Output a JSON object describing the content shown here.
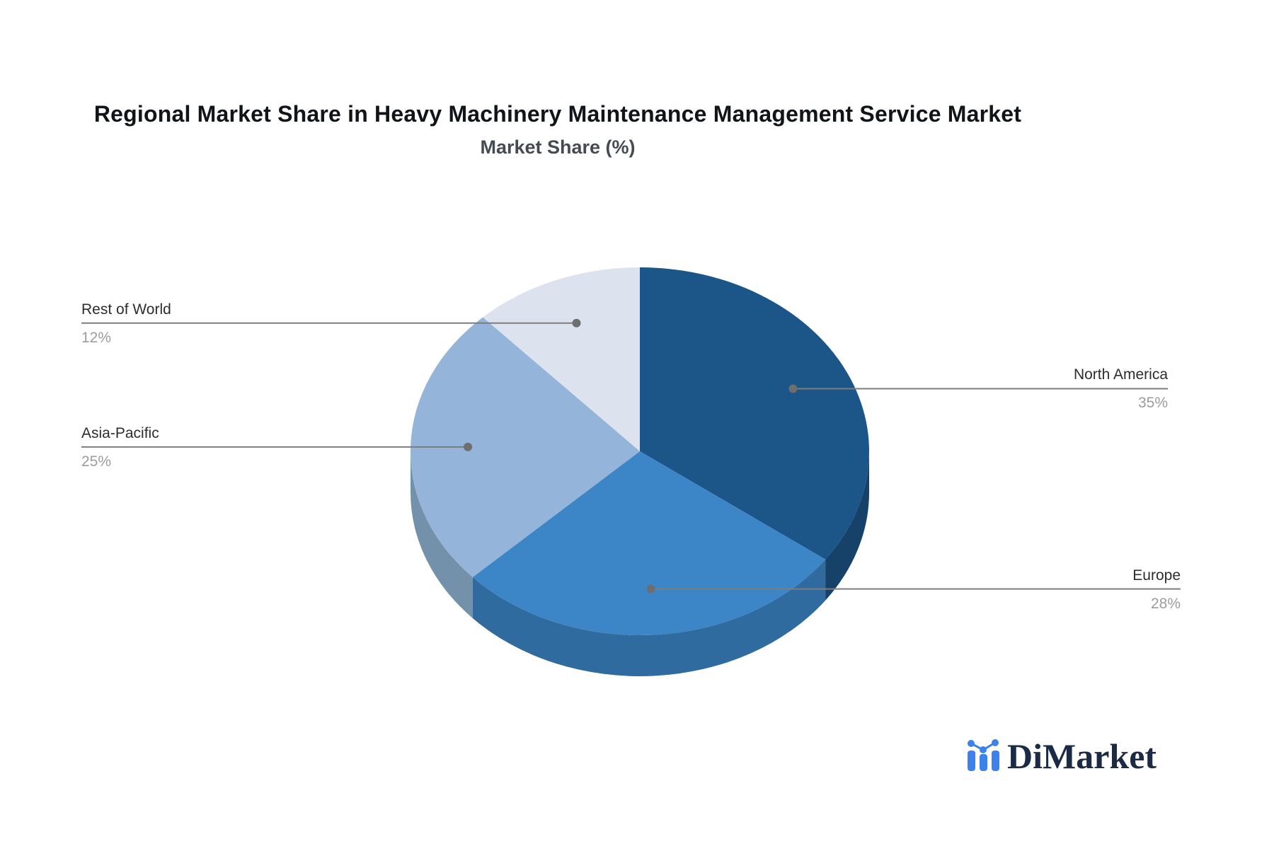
{
  "header": {
    "title": "Regional Market Share in Heavy Machinery Maintenance Management Service Market",
    "subtitle": "Market Share (%)"
  },
  "chart_data": {
    "type": "pie",
    "title": "Regional Market Share in Heavy Machinery Maintenance Management Service Market",
    "subtitle": "Market Share (%)",
    "unit": "%",
    "style": "3d-pie",
    "direction": "clockwise",
    "start_angle": "12 o'clock",
    "categories": [
      "North America",
      "Europe",
      "Asia-Pacific",
      "Rest of World"
    ],
    "values": [
      35,
      28,
      25,
      12
    ],
    "slices": [
      {
        "name": "North America",
        "value": 35,
        "pct": "35%",
        "color": "#1c5587",
        "side_color": "#164169",
        "label_side": "right"
      },
      {
        "name": "Europe",
        "value": 28,
        "pct": "28%",
        "color": "#3c86c8",
        "side_color": "#2f6b9e",
        "label_side": "right"
      },
      {
        "name": "Asia-Pacific",
        "value": 25,
        "pct": "25%",
        "color": "#94b5d9",
        "side_color": "#7391aa",
        "label_side": "left"
      },
      {
        "name": "Rest of World",
        "value": 12,
        "pct": "12%",
        "color": "#dde3ee",
        "side_color": "#b9c2d2",
        "label_side": "left"
      }
    ],
    "label_text_color": "#2d2d2d",
    "value_text_color": "#9c9c9c",
    "leader_line_color": "#7d7d7d"
  },
  "logo": {
    "text": "DiMarket",
    "icon": "bar-line-chart-icon",
    "accent_color": "#3b82ea",
    "text_color": "#1b2a45"
  }
}
